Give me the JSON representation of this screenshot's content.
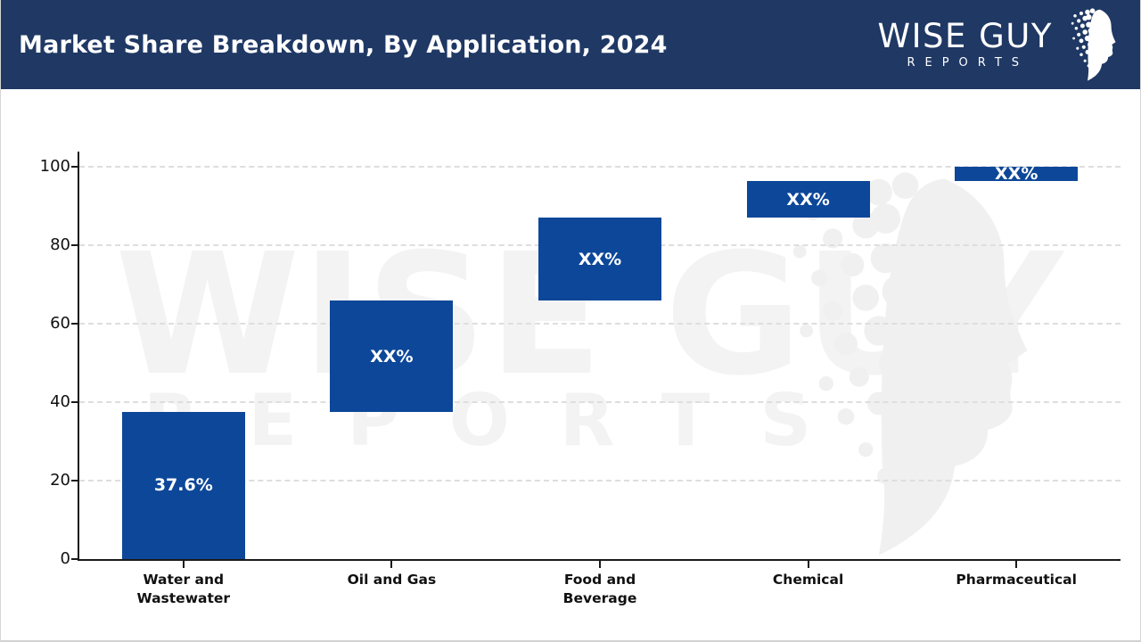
{
  "header": {
    "title": "Market Share Breakdown, By Application, 2024",
    "logo": {
      "line1": "WISE GUY",
      "line2": "REPORTS"
    }
  },
  "watermark": {
    "line1": "WISE GUY",
    "line2": "REPORTS"
  },
  "colors": {
    "header_bg": "#1f3864",
    "bar": "#0d4799",
    "grid": "#dedede",
    "axis": "#1a1a1a",
    "bar_label": "#ffffff",
    "watermark": "#f2f2f2"
  },
  "chart_data": {
    "type": "bar",
    "subtype": "waterfall",
    "title": "Market Share Breakdown, By Application, 2024",
    "categories": [
      "Water and Wastewater",
      "Oil and Gas",
      "Food and Beverage",
      "Chemical",
      "Pharmaceutical"
    ],
    "bars": [
      {
        "category": "Water and Wastewater",
        "start": 0,
        "end": 37.6,
        "label": "37.6%"
      },
      {
        "category": "Oil and Gas",
        "start": 37.6,
        "end": 65.8,
        "label": "XX%"
      },
      {
        "category": "Food and Beverage",
        "start": 65.8,
        "end": 87.0,
        "label": "XX%"
      },
      {
        "category": "Chemical",
        "start": 87.0,
        "end": 96.4,
        "label": "XX%"
      },
      {
        "category": "Pharmaceutical",
        "start": 96.4,
        "end": 100.0,
        "label": "XX%"
      }
    ],
    "xlabel": "",
    "ylabel": "",
    "ylim": [
      0,
      100
    ],
    "yticks": [
      0,
      20,
      40,
      60,
      80,
      100
    ],
    "grid": "horizontal-dashed",
    "legend": "none"
  }
}
